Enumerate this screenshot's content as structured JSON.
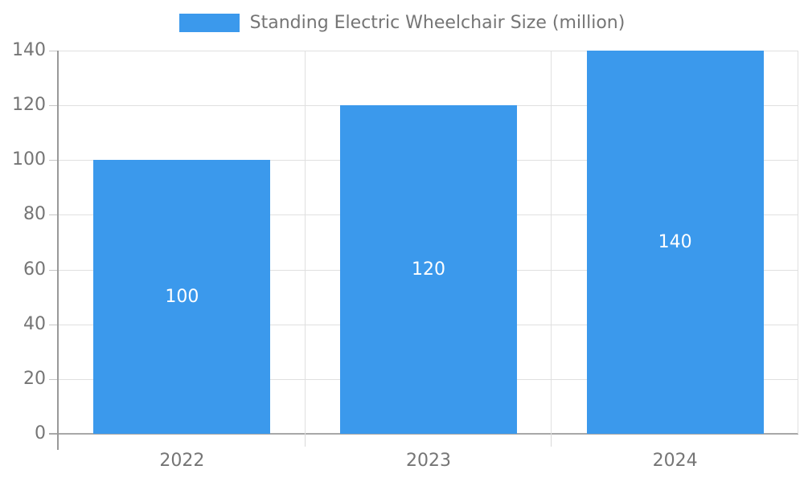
{
  "legend": {
    "label": "Standing Electric Wheelchair Size (million)"
  },
  "chart_data": {
    "type": "bar",
    "title": "Standing Electric Wheelchair Size (million)",
    "categories": [
      "2022",
      "2023",
      "2024"
    ],
    "values": [
      100,
      120,
      140
    ],
    "bar_labels": [
      "100",
      "120",
      "140"
    ],
    "xlabel": "",
    "ylabel": "",
    "ylim": [
      0,
      140
    ],
    "yticks": [
      0,
      20,
      40,
      60,
      80,
      100,
      120,
      140
    ],
    "grid": true,
    "legend_position": "top-center",
    "colors": {
      "bar": "#3b99ec",
      "bar_label_text": "#ffffff",
      "axis_text": "#757575",
      "grid_line": "#e0e0e0",
      "tick_line": "#c6c6c6",
      "below_axis_tick": "#d9d9d9",
      "axis_line": "#999999",
      "zero_line": "#a8a8a8",
      "background": "#ffffff"
    }
  }
}
